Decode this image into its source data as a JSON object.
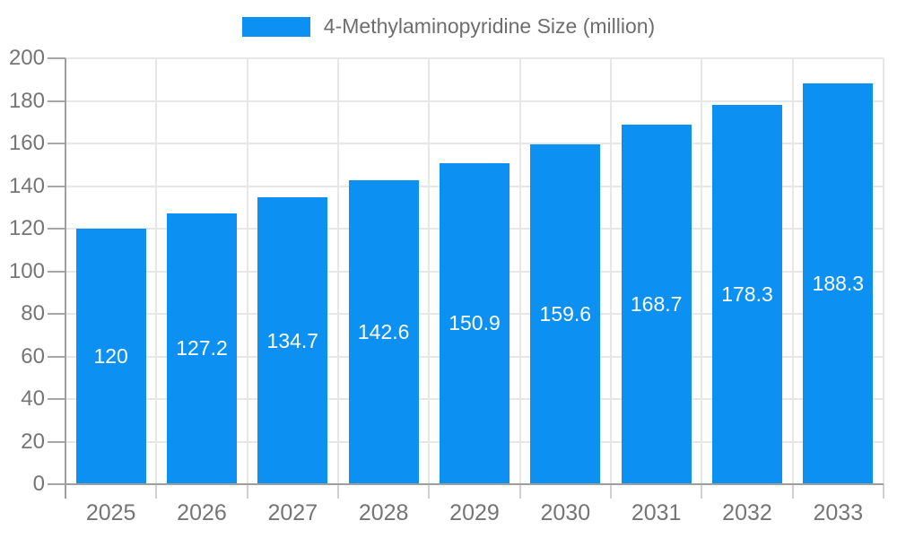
{
  "chart_data": {
    "type": "bar",
    "title": "",
    "legend": "4-Methylaminopyridine Size (million)",
    "legend_position": "top-center",
    "categories": [
      "2025",
      "2026",
      "2027",
      "2028",
      "2029",
      "2030",
      "2031",
      "2032",
      "2033"
    ],
    "values": [
      120,
      127.2,
      134.7,
      142.6,
      150.9,
      159.6,
      168.7,
      178.3,
      188.3
    ],
    "yticks": [
      0,
      20,
      40,
      60,
      80,
      100,
      120,
      140,
      160,
      180,
      200
    ],
    "ylim": [
      0,
      200
    ],
    "xlabel": "",
    "ylabel": "",
    "grid": true,
    "value_labels_inside_bars": true,
    "colors": {
      "bar": "#0C90F2",
      "axis": "#9E9E9E",
      "grid": "#E7E7E7",
      "y_tick": "#A6A6A6",
      "x_tick": "#D0D0D0",
      "axis_label_text": "#757575",
      "legend_text": "#6E6E6E",
      "bar_label_text": "#FFFFFF",
      "background": "#FFFFFF"
    }
  }
}
